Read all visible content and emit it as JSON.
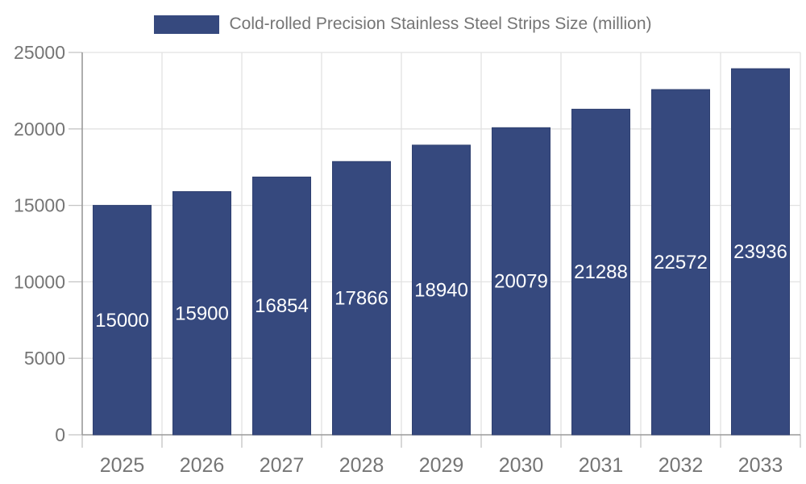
{
  "chart_data": {
    "type": "bar",
    "title": "Cold-rolled Precision Stainless Steel Strips Size (million)",
    "series_name": "Cold-rolled Precision Stainless Steel Strips Size (million)",
    "categories": [
      "2025",
      "2026",
      "2027",
      "2028",
      "2029",
      "2030",
      "2031",
      "2032",
      "2033"
    ],
    "values": [
      15000,
      15900,
      16854,
      17866,
      18940,
      20079,
      21288,
      22572,
      23936
    ],
    "xlabel": "",
    "ylabel": "",
    "ylim": [
      0,
      25000
    ],
    "yticks": [
      0,
      5000,
      10000,
      15000,
      20000,
      25000
    ],
    "grid": "both",
    "legend_position": "top-center",
    "bar_value_labels_inside": true,
    "colors": {
      "bar": "#36497E",
      "bar_border": "#2F4070",
      "grid": "#E2E2E2",
      "axis": "#9A9A9A",
      "tick": "#C4C4C4",
      "tick_text": "#757575",
      "bar_label_text": "#FFFFFF",
      "legend_text": "#757575",
      "background": "#FFFFFF"
    }
  }
}
